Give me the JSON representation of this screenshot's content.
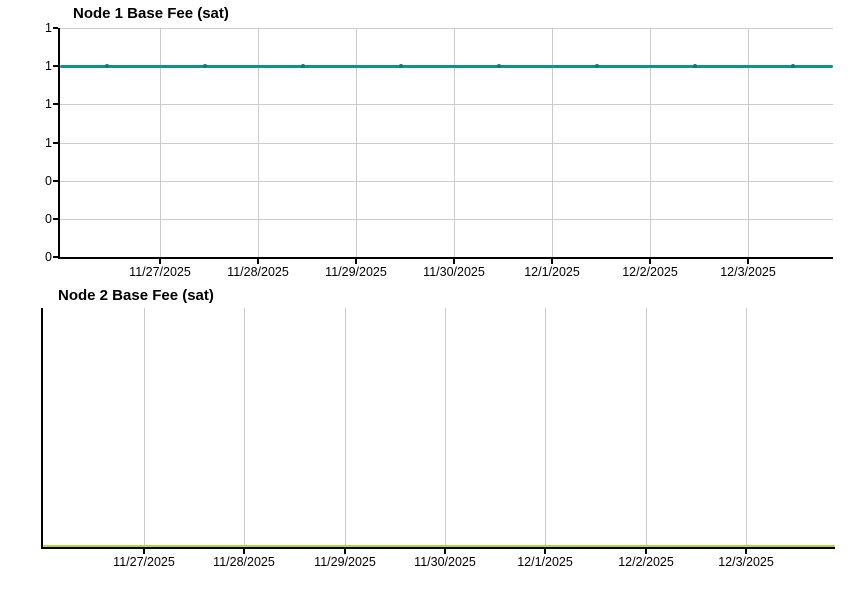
{
  "page": {
    "background_color": "#FFFFFF",
    "text_color": "#000000"
  },
  "chart_data": [
    {
      "type": "line",
      "title": "Node 1 Base Fee (sat)",
      "xlabel": "",
      "ylabel": "",
      "legend": "none",
      "x_tick_labels": [
        "11/27/2025",
        "11/28/2025",
        "11/29/2025",
        "11/30/2025",
        "12/1/2025",
        "12/2/2025",
        "12/3/2025"
      ],
      "y_tick_labels": [
        "1",
        "1",
        "1",
        "1",
        "0",
        "0",
        "0"
      ],
      "y_tick_values": [
        1.2,
        1.0,
        0.8,
        0.6,
        0.4,
        0.2,
        0.0
      ],
      "ylim": [
        0,
        1.2
      ],
      "grid": {
        "horizontal": true,
        "vertical": true,
        "color": "#CCCCCC"
      },
      "axis_color": "#000000",
      "series": [
        {
          "name": "Node 1 Base Fee",
          "color": "#0E9191",
          "marker_color": "#0A7878",
          "constant_value": 1,
          "x": [
            "11/26/2025",
            "11/27/2025",
            "11/28/2025",
            "11/29/2025",
            "11/30/2025",
            "12/1/2025",
            "12/2/2025",
            "12/3/2025"
          ],
          "values": [
            1,
            1,
            1,
            1,
            1,
            1,
            1,
            1
          ]
        }
      ]
    },
    {
      "type": "line",
      "title": "Node 2 Base Fee (sat)",
      "xlabel": "",
      "ylabel": "",
      "legend": "none",
      "x_tick_labels": [
        "11/27/2025",
        "11/28/2025",
        "11/29/2025",
        "11/30/2025",
        "12/1/2025",
        "12/2/2025",
        "12/3/2025"
      ],
      "y_tick_labels": [],
      "y_tick_values": [],
      "ylim": [
        0,
        1
      ],
      "grid": {
        "horizontal": false,
        "vertical": true,
        "color": "#CCCCCC"
      },
      "axis_color": "#000000",
      "series": [
        {
          "name": "Node 2 Base Fee",
          "color": "#B2D546",
          "marker_color": "#B2D546",
          "constant_value": 0,
          "x": [
            "11/26/2025",
            "11/27/2025",
            "11/28/2025",
            "11/29/2025",
            "11/30/2025",
            "12/1/2025",
            "12/2/2025",
            "12/3/2025"
          ],
          "values": [
            0,
            0,
            0,
            0,
            0,
            0,
            0,
            0
          ]
        }
      ]
    }
  ]
}
